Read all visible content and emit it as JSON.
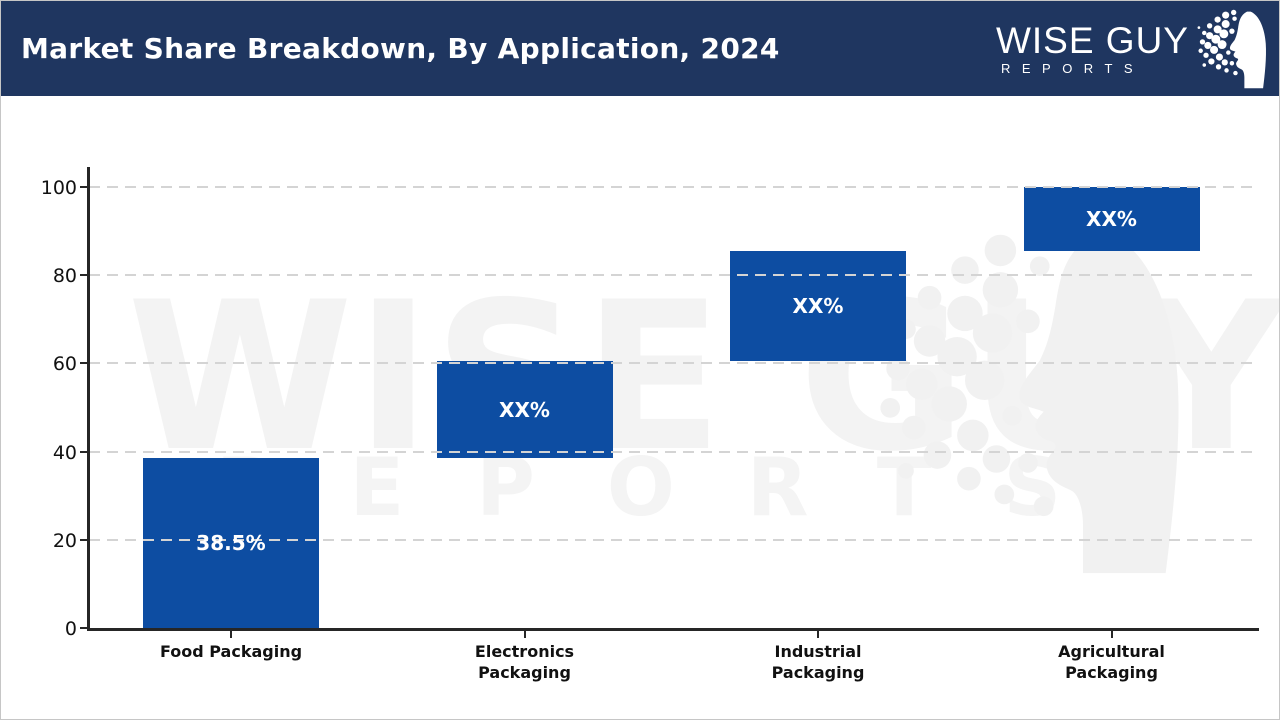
{
  "header": {
    "title": "Market Share Breakdown, By Application, 2024",
    "background": "#1f3660",
    "logo": {
      "line1": "WISE GUY",
      "line2": "REPORTS"
    }
  },
  "watermark": {
    "line1": "WISE GUY",
    "line2": "REPORTS"
  },
  "chart_data": {
    "type": "bar",
    "variant": "waterfall",
    "title": "Market Share Breakdown, By Application, 2024",
    "categories": [
      "Food Packaging",
      "Electronics Packaging",
      "Industrial Packaging",
      "Agricultural Packaging"
    ],
    "category_label_lines": [
      [
        "Food Packaging"
      ],
      [
        "Electronics",
        "Packaging"
      ],
      [
        "Industrial",
        "Packaging"
      ],
      [
        "Agricultural",
        "Packaging"
      ]
    ],
    "segments": [
      {
        "category": "Food Packaging",
        "start": 0,
        "end": 38.5,
        "label": "38.5%"
      },
      {
        "category": "Electronics Packaging",
        "start": 38.5,
        "end": 60.5,
        "label": "XX%"
      },
      {
        "category": "Industrial Packaging",
        "start": 60.5,
        "end": 85.5,
        "label": "XX%"
      },
      {
        "category": "Agricultural Packaging",
        "start": 85.5,
        "end": 100,
        "label": "XX%"
      }
    ],
    "ylim": [
      0,
      100
    ],
    "yticks": [
      0,
      20,
      40,
      60,
      80,
      100
    ],
    "xlabel": "",
    "ylabel": "",
    "legend": null,
    "grid": {
      "axis": "y",
      "style": "dashed",
      "color": "#d4d4d4",
      "above_bars": true
    },
    "bar_color": "#0d4da2",
    "bar_label_color": "#ffffff",
    "axis_color": "#262626"
  }
}
